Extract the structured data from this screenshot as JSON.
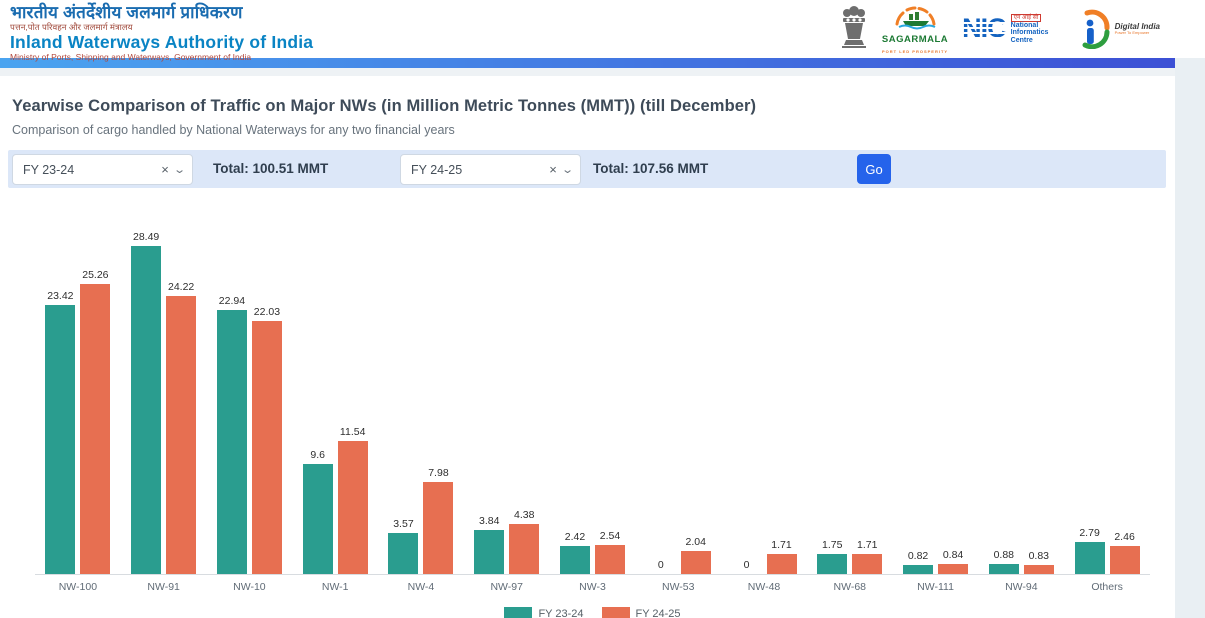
{
  "header": {
    "org_hindi": "भारतीय अंतर्देशीय जलमार्ग प्राधिकरण",
    "ministry_hindi": "पत्तन,पोत परिवहन और जलमार्ग मंत्रालय",
    "org_english": "Inland Waterways Authority of India",
    "ministry_english": "Ministry of Ports, Shipping and Waterways, Government of India",
    "logos": {
      "emblem_name": "emblem-of-india",
      "sagarmala_name": "SAGARMALA",
      "sagarmala_tagline": "PORT LED PROSPERITY",
      "nic_letters": "NIC",
      "nic_hindi": "एन आई सी",
      "nic_full": "National Informatics Centre",
      "digital_india_name": "Digital India",
      "digital_india_tagline": "Power To Empower"
    }
  },
  "section": {
    "title_main": "Yearwise Comparison of Traffic on Major NWs (in Million Metric Tonnes (MMT)) (till ",
    "title_bold": "December",
    "title_close": ")",
    "subtitle": "Comparison of cargo handled by National Waterways for any two financial years"
  },
  "filters": {
    "year1_value": "FY 23-24",
    "total1": "Total: 100.51 MMT",
    "year2_value": "FY 24-25",
    "total2": "Total: 107.56 MMT",
    "go_label": "Go"
  },
  "chart_data": {
    "type": "bar",
    "categories": [
      "NW-100",
      "NW-91",
      "NW-10",
      "NW-1",
      "NW-4",
      "NW-97",
      "NW-3",
      "NW-53",
      "NW-48",
      "NW-68",
      "NW-111",
      "NW-94",
      "Others"
    ],
    "series": [
      {
        "name": "FY 23-24",
        "color": "#2a9d8f",
        "values": [
          23.42,
          28.49,
          22.94,
          9.6,
          3.57,
          3.84,
          2.42,
          0,
          0,
          1.75,
          0.82,
          0.88,
          2.79
        ]
      },
      {
        "name": "FY 24-25",
        "color": "#e76f51",
        "values": [
          25.26,
          24.22,
          22.03,
          11.54,
          7.98,
          4.38,
          2.54,
          2.04,
          1.71,
          1.71,
          0.84,
          0.83,
          2.46
        ]
      }
    ],
    "title": "Yearwise Comparison of Traffic on Major NWs (in Million Metric Tonnes (MMT)) (till December)",
    "xlabel": "",
    "ylabel": "",
    "ylim": [
      0,
      30
    ],
    "grid": false,
    "legend_position": "bottom",
    "value_labels": true
  },
  "colors": {
    "accent_blue": "#2563eb",
    "series1": "#2a9d8f",
    "series2": "#e76f51",
    "filter_bar_bg": "#dce7f8"
  }
}
